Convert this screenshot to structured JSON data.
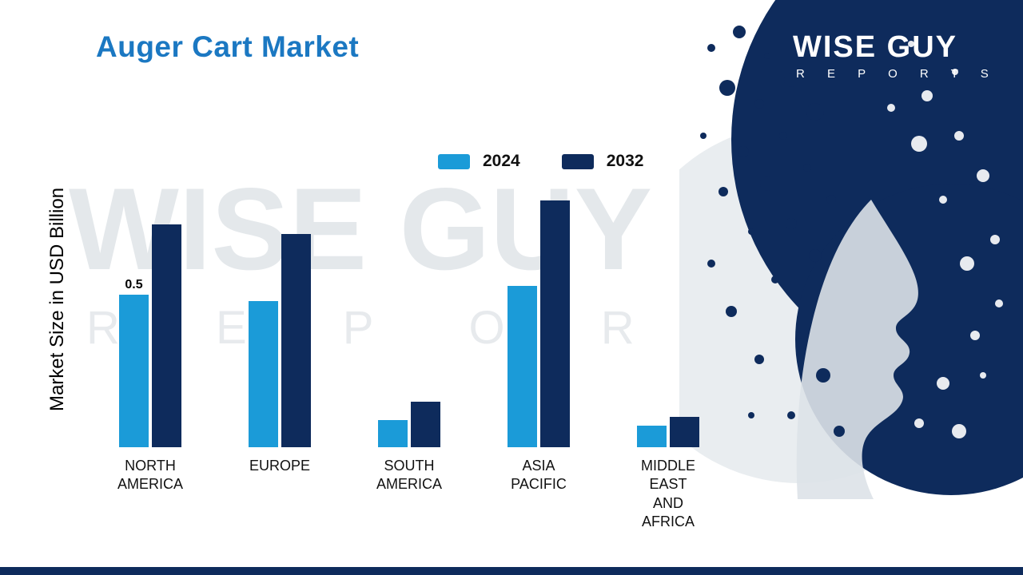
{
  "page": {
    "title": "Auger Cart Market",
    "colors": {
      "title_blue": "#1b78c2",
      "bar_blue_2024": "#1b9bd8",
      "navy_2032": "#0e2b5c",
      "watermark_gray": "#e4e8eb"
    }
  },
  "logo": {
    "line1": "WISE GUY",
    "line2": "R E P O R T S"
  },
  "watermark": {
    "line1": "WISE GUY",
    "line2": "R E P O R T S"
  },
  "chart_data": {
    "type": "bar",
    "title": "Auger Cart Market",
    "xlabel": "",
    "ylabel": "Market Size in USD Billion",
    "categories": [
      "NORTH AMERICA",
      "EUROPE",
      "SOUTH AMERICA",
      "ASIA PACIFIC",
      "MIDDLE EAST AND AFRICA"
    ],
    "category_lines": [
      [
        "NORTH",
        "AMERICA"
      ],
      [
        "EUROPE"
      ],
      [
        "SOUTH",
        "AMERICA"
      ],
      [
        "ASIA",
        "PACIFIC"
      ],
      [
        "MIDDLE",
        "EAST",
        "AND",
        "AFRICA"
      ]
    ],
    "series": [
      {
        "name": "2024",
        "color": "#1b9bd8",
        "values": [
          0.5,
          0.48,
          0.09,
          0.53,
          0.07
        ]
      },
      {
        "name": "2032",
        "color": "#0e2b5c",
        "values": [
          0.73,
          0.7,
          0.15,
          0.81,
          0.1
        ]
      }
    ],
    "annotations": [
      {
        "series_index": 0,
        "category_index": 0,
        "text": "0.5"
      }
    ],
    "ylim": [
      0,
      1
    ],
    "grid": false,
    "legend_position": "top-right"
  }
}
